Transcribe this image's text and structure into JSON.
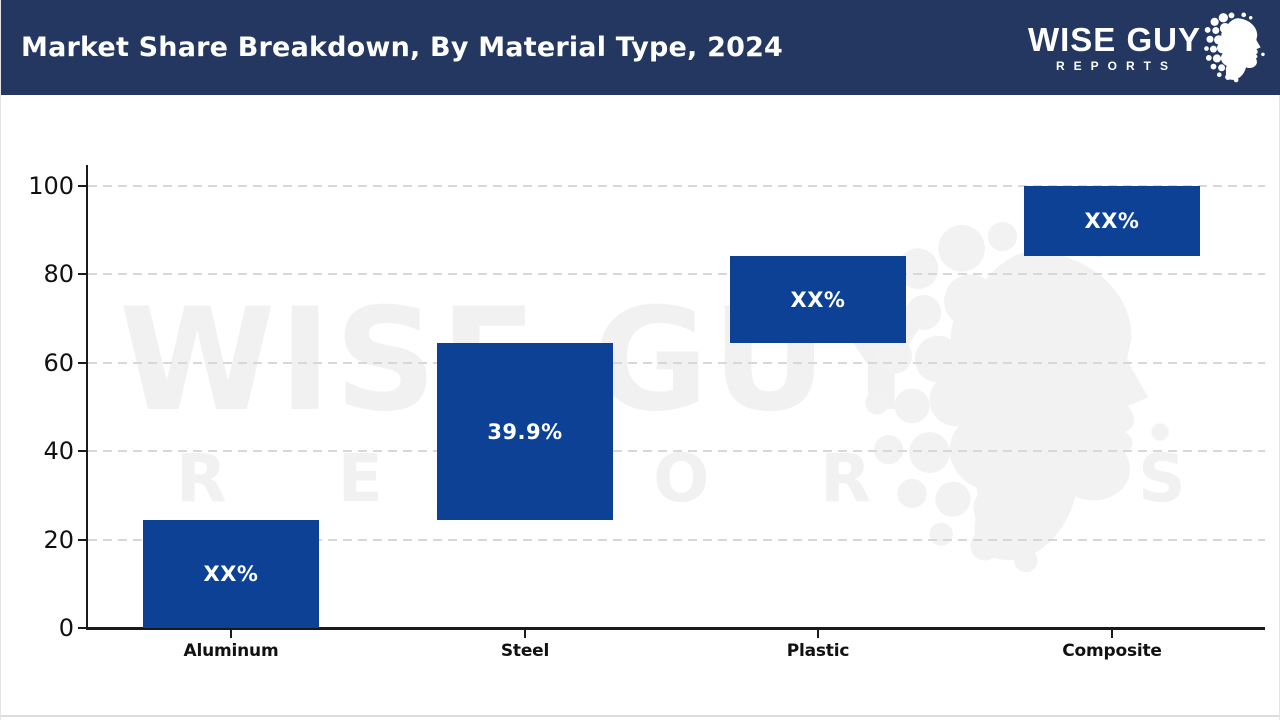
{
  "header": {
    "title": "Market Share Breakdown, By Material Type, 2024",
    "logo": {
      "line1": "WISE GUY",
      "line2": "REPORTS"
    }
  },
  "watermark": {
    "line1": "WISE GUY",
    "line2": "R E P O R T S"
  },
  "chart_data": {
    "type": "bar",
    "subtype": "floating-segment-breakdown",
    "title": "Market Share Breakdown, By Material Type, 2024",
    "categories": [
      "Aluminum",
      "Steel",
      "Plastic",
      "Composite"
    ],
    "bars": [
      {
        "category": "Aluminum",
        "start": 0,
        "end": 24.5,
        "label": "XX%"
      },
      {
        "category": "Steel",
        "start": 24.5,
        "end": 64.4,
        "label": "39.9%"
      },
      {
        "category": "Plastic",
        "start": 64.4,
        "end": 84.2,
        "label": "XX%"
      },
      {
        "category": "Composite",
        "start": 84.2,
        "end": 100,
        "label": "XX%"
      }
    ],
    "yticks": [
      0,
      20,
      40,
      60,
      80,
      100
    ],
    "ylim": [
      0,
      105
    ],
    "xlabel": "",
    "ylabel": "",
    "grid": "horizontal-dashed",
    "legend": "none",
    "bar_color": "#0C4195",
    "bar_label_color": "#ffffff",
    "axis_color": "#1a1a1a",
    "grid_color": "#d8d8d8",
    "header_bg_color": "#233760",
    "watermark_color": "#f1f1f1"
  }
}
